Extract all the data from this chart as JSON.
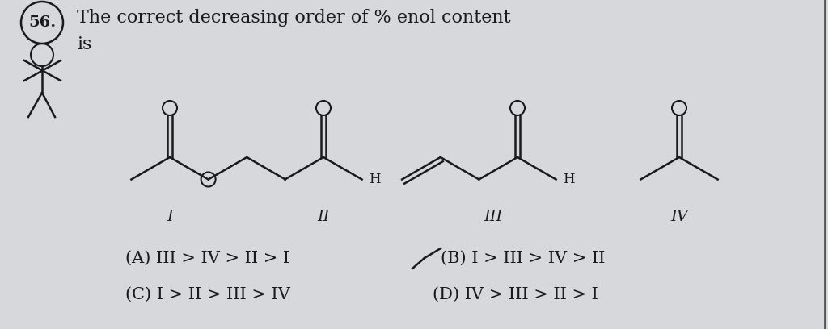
{
  "bg_color": "#d6d8dc",
  "font_color": "#1a1a1a",
  "title_number": "56.",
  "title_text": "The correct decreasing order of % enol content",
  "subtitle_text": "is",
  "options": {
    "A": "(A) III > IV > II > I",
    "B": "(B) I > III > IV > II",
    "C": "(C) I > II > III > IV",
    "D": "(D) IV > III > II > I"
  },
  "roman_I": "I",
  "roman_II": "II",
  "roman_III": "III",
  "roman_IV": "IV",
  "text_fontsize": 16,
  "option_fontsize": 15,
  "roman_fontsize": 14,
  "struct_fontsize": 12,
  "lw": 1.8
}
